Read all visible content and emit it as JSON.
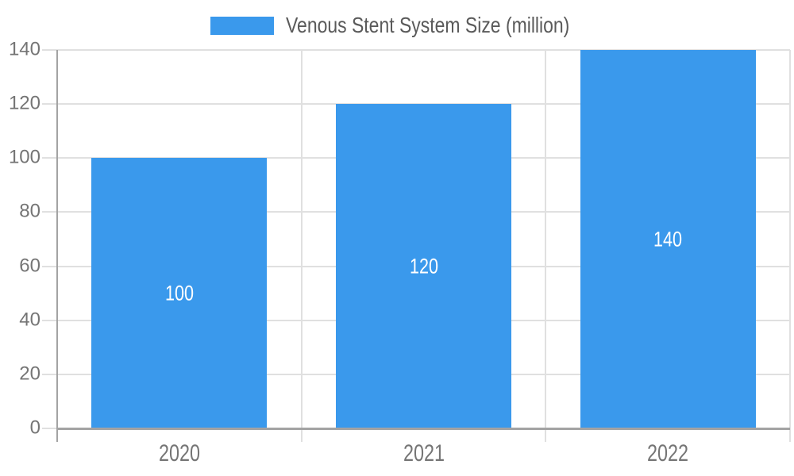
{
  "chart_data": {
    "type": "bar",
    "title": "",
    "legend": {
      "position": "top",
      "label": "Venous Stent System Size (million)"
    },
    "categories": [
      "2020",
      "2021",
      "2022"
    ],
    "series": [
      {
        "name": "Venous Stent System Size (million)",
        "values": [
          100,
          120,
          140
        ]
      }
    ],
    "bar_value_labels": [
      "100",
      "120",
      "140"
    ],
    "xlabel": "",
    "ylabel": "",
    "ylim": [
      0,
      140
    ],
    "yticks": [
      0,
      20,
      40,
      60,
      80,
      100,
      120,
      140
    ],
    "grid": "horizontal-gridlines-with-category-separators",
    "colors": {
      "bar": "#3A99EC",
      "grid_line": "#E0E0E0",
      "axis_line": "#A3A3A3",
      "tick_text": "#757575",
      "legend_text": "#5A5A5A",
      "bar_label_text": "#FFFFFF",
      "background": "#FFFFFF"
    }
  }
}
